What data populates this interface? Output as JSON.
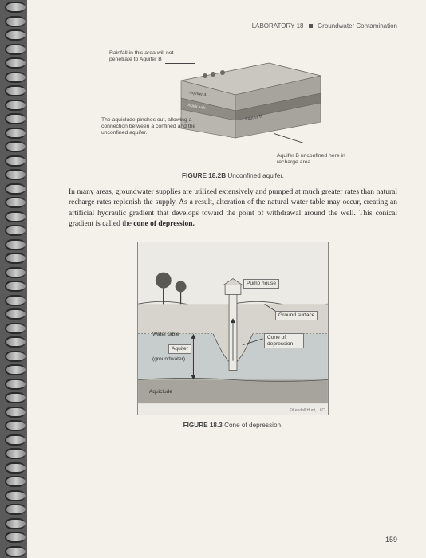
{
  "header": {
    "lab": "LABORATORY 18",
    "title": "Groundwater Contamination"
  },
  "fig1": {
    "annot_top": "Rainfall in this area will not penetrate to Aquifer B",
    "annot_left": "The aquiclude pinches out, allowing a connection between a confined and the unconfined aquifer.",
    "annot_right": "Aquifer B unconfined here in recharge area",
    "layer_a": "Aquifer A unconfined",
    "layer_clude": "Aquiclude",
    "layer_b": "Aquifer B",
    "caption_bold": "FIGURE 18.2B",
    "caption_rest": "Unconfined aquifer."
  },
  "paragraph": "In many areas, groundwater supplies are utilized extensively and pumped at much greater rates than natural recharge rates replenish the supply. As a result, alteration of the natural water table may occur, creating an artificial hydraulic gradient that develops toward the point of withdrawal around the well. This conical gradient is called the ",
  "paragraph_bold": "cone of depression.",
  "fig2": {
    "pump": "Pump house",
    "ground": "Ground surface",
    "aquifer": "Aquifer",
    "watertable": "Water table",
    "gw": "(groundwater)",
    "cone": "Cone of depression",
    "aquiclude": "Aquiclude",
    "credit": "©Kendall Hunt, LLC",
    "caption_bold": "FIGURE 18.3",
    "caption_rest": "Cone of depression."
  },
  "pagenum": "159",
  "colors": {
    "page_bg": "#f4f1ea",
    "text": "#2b2b2b",
    "fig_border": "#888888",
    "layer_top": "#c9c7bf",
    "layer_mid": "#b8b6ae",
    "layer_dark": "#a09e96",
    "water": "#bfc4c6"
  }
}
